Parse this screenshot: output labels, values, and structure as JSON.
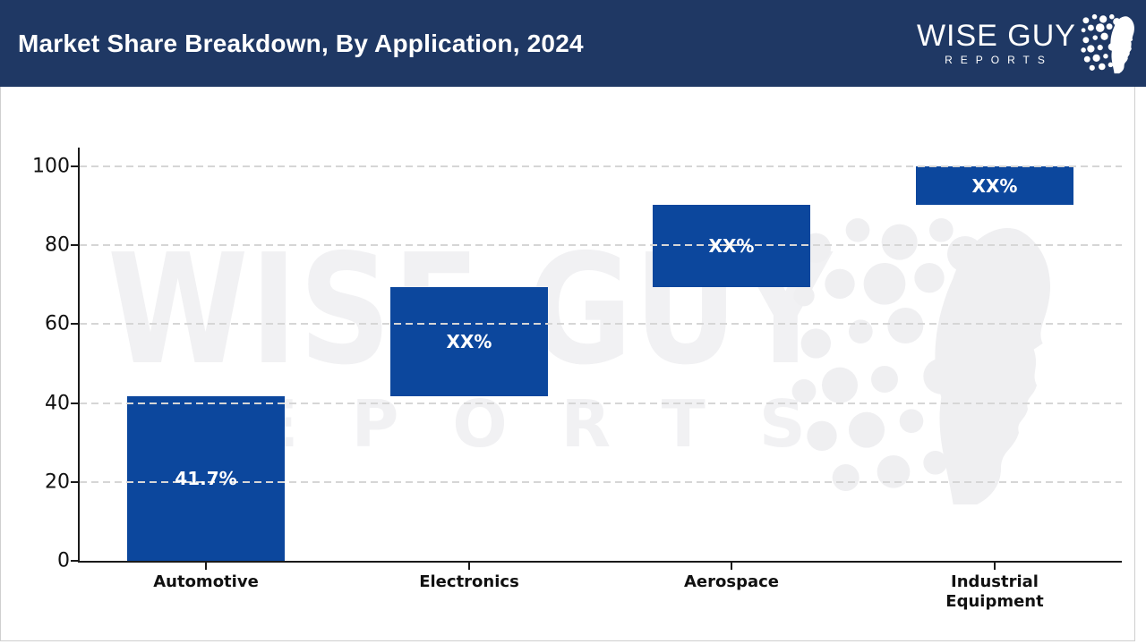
{
  "header": {
    "title": "Market Share Breakdown, By Application, 2024"
  },
  "logo": {
    "line1": "WISE GUY",
    "line2": "REPORTS"
  },
  "watermark": {
    "line1": "WISE GUY",
    "line2": "REPORTS"
  },
  "colors": {
    "header_bg": "#1f3864",
    "bar_blue": "#0c479d",
    "watermark_gray": "#f1f1f3",
    "grid_gray": "#d6d6d6",
    "border_gray": "#cfcfcf",
    "axis_black": "#1a1a1a",
    "text_white": "#ffffff"
  },
  "chart_data": {
    "type": "bar",
    "subtype": "waterfall",
    "title": "Market Share Breakdown, By Application, 2024",
    "categories": [
      "Automotive",
      "Electronics",
      "Aerospace",
      "Industrial Equipment"
    ],
    "x_tick_labels": [
      "Automotive",
      "Electronics",
      "Aerospace",
      "Industrial\nEquipment"
    ],
    "segments": [
      {
        "category": "Automotive",
        "start": 0,
        "end": 41.7,
        "value_label": "41.7%"
      },
      {
        "category": "Electronics",
        "start": 41.7,
        "end": 69.4,
        "value_label": "XX%"
      },
      {
        "category": "Aerospace",
        "start": 69.4,
        "end": 90.2,
        "value_label": "XX%"
      },
      {
        "category": "Industrial Equipment",
        "start": 90.2,
        "end": 100,
        "value_label": "XX%"
      }
    ],
    "ylim": [
      0,
      100
    ],
    "yticks": [
      0,
      20,
      40,
      60,
      80,
      100
    ],
    "xlabel": "",
    "ylabel": "",
    "grid": "horizontal-dashed",
    "grid_on_top_of_bars": true,
    "legend": "none",
    "bar_color": "#0c479d",
    "bar_label_color": "#ffffff"
  }
}
